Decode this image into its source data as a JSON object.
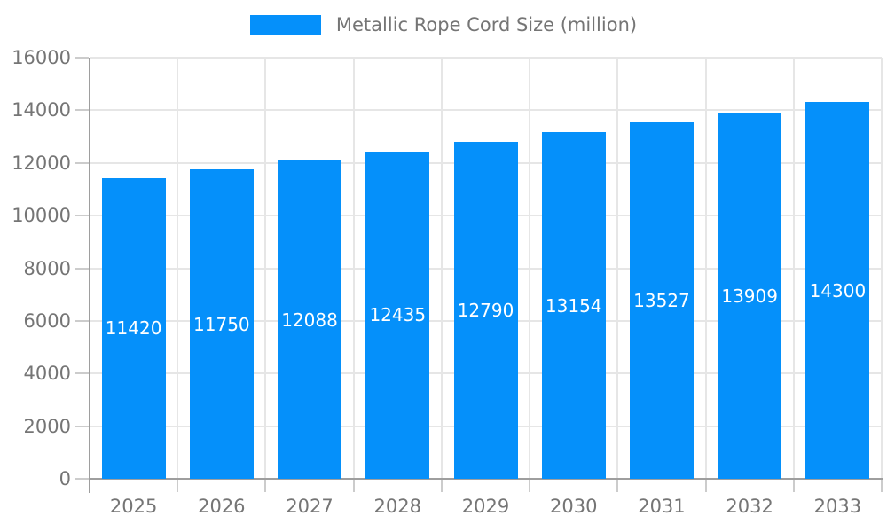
{
  "legend": {
    "label": "Metallic Rope Cord Size (million)"
  },
  "chart_data": {
    "type": "bar",
    "title": "Metallic Rope Cord Size (million)",
    "categories": [
      "2025",
      "2026",
      "2027",
      "2028",
      "2029",
      "2030",
      "2031",
      "2032",
      "2033"
    ],
    "values": [
      11420,
      11750,
      12088,
      12435,
      12790,
      13154,
      13527,
      13909,
      14300
    ],
    "xlabel": "",
    "ylabel": "",
    "ylim": [
      0,
      16000
    ],
    "yticks": [
      0,
      2000,
      4000,
      6000,
      8000,
      10000,
      12000,
      14000,
      16000
    ],
    "grid": true,
    "legend_position": "top-center",
    "value_labels": "inside-center",
    "bar_color": "#0590fa",
    "label_color": "#ffffff",
    "axis_text_color": "#757575",
    "grid_color": "#e6e6e6",
    "tick_color": "#cccccc",
    "axis_line_color": "#9e9e9e"
  }
}
